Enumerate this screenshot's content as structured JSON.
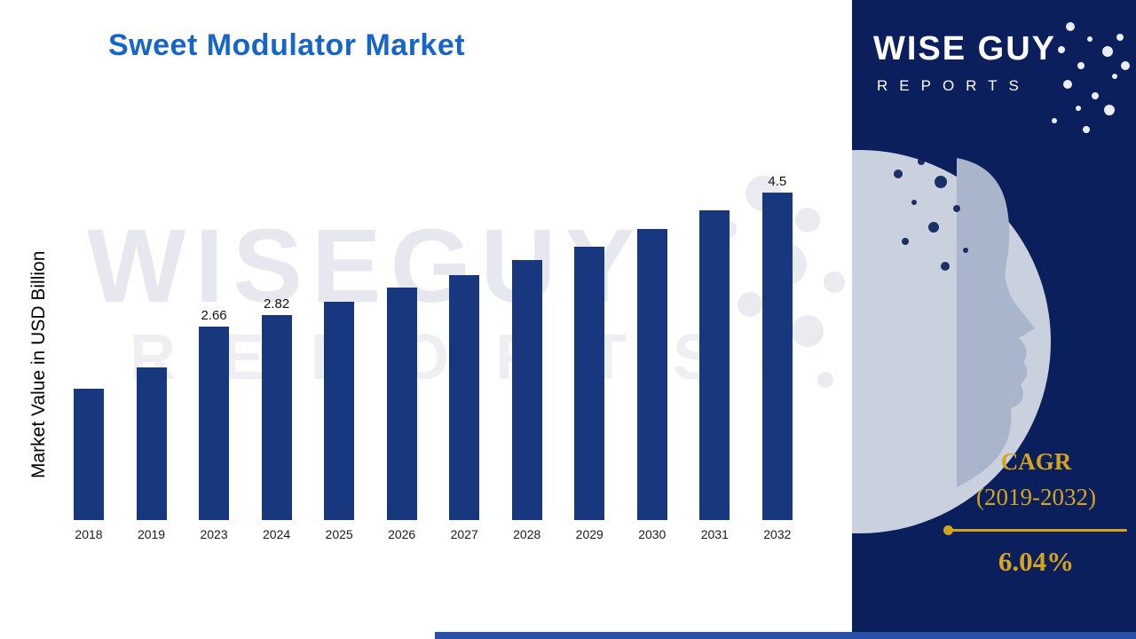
{
  "title": "Sweet Modulator Market",
  "title_color": "#1666c9",
  "watermark": {
    "line1": "WISEGUY",
    "line2": "REPORTS"
  },
  "chart_data": {
    "type": "bar",
    "title": "Sweet Modulator Market",
    "xlabel": "",
    "ylabel": "Market Value in USD Billion",
    "categories": [
      "2018",
      "2019",
      "2023",
      "2024",
      "2025",
      "2026",
      "2027",
      "2028",
      "2029",
      "2030",
      "2031",
      "2032"
    ],
    "values": [
      1.8,
      2.1,
      2.66,
      2.82,
      3.0,
      3.2,
      3.37,
      3.57,
      3.76,
      4.0,
      4.25,
      4.5
    ],
    "labels": [
      "",
      "",
      "2.66",
      "2.82",
      "",
      "",
      "",
      "",
      "",
      "",
      "",
      "4.5"
    ],
    "bar_color": "#17377f",
    "ylim": [
      0,
      5
    ],
    "grid": false,
    "legend": "none"
  },
  "brand": {
    "logo_name": "WISE GUY",
    "logo_sub": "REPORTS",
    "cagr_label": "CAGR",
    "cagr_range": "(2019-2032)",
    "cagr_value": "6.04%",
    "panel_color": "#0a1f5c",
    "accent_gold": "#d4a41f",
    "face_icon": "profile-face-icon"
  }
}
